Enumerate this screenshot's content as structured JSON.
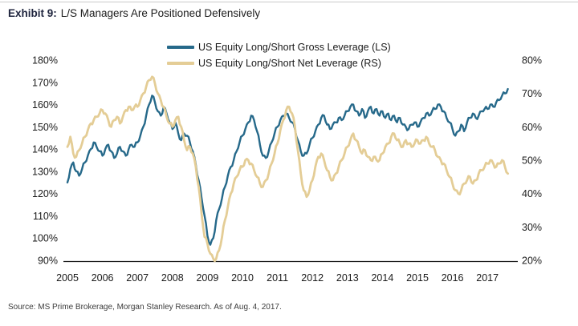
{
  "exhibit": {
    "label": "Exhibit 9:",
    "title": "L/S Managers Are Positioned Defensively"
  },
  "source": "Source: MS Prime Brokerage, Morgan Stanley Research. As of Aug. 4, 2017.",
  "chart_data": {
    "type": "line",
    "title": "Exhibit 9: L/S Managers Are Positioned Defensively",
    "grid": "off",
    "legend_position": "top",
    "x_ticks": [
      "2005",
      "2006",
      "2007",
      "2008",
      "2009",
      "2010",
      "2011",
      "2012",
      "2013",
      "2014",
      "2015",
      "2016",
      "2017"
    ],
    "x_range": [
      2005,
      2017.75
    ],
    "left_axis": {
      "min": 90,
      "max": 180,
      "tick_step": 10,
      "tick_labels": [
        "180%",
        "170%",
        "160%",
        "150%",
        "140%",
        "130%",
        "120%",
        "110%",
        "100%",
        "90%"
      ]
    },
    "right_axis": {
      "min": 20,
      "max": 80,
      "tick_step": 10,
      "tick_labels": [
        "80%",
        "70%",
        "60%",
        "50%",
        "40%",
        "30%",
        "20%"
      ]
    },
    "series": [
      {
        "name": "US Equity Long/Short Gross Leverage (LS)",
        "axis": "left",
        "color": "#26698a",
        "start_year": 2005,
        "interval_months": 1,
        "values": [
          125,
          131,
          134,
          130,
          128,
          131,
          134,
          137,
          140,
          143,
          141,
          139,
          137,
          140,
          142,
          139,
          136,
          138,
          141,
          139,
          137,
          140,
          142,
          141,
          143,
          146,
          150,
          155,
          160,
          164,
          161,
          157,
          155,
          159,
          156,
          152,
          149,
          152,
          147,
          144,
          147,
          146,
          143,
          139,
          133,
          126,
          118,
          110,
          101,
          97,
          100,
          108,
          113,
          118,
          123,
          128,
          132,
          135,
          139,
          143,
          146,
          149,
          152,
          155,
          153,
          148,
          142,
          137,
          136,
          139,
          143,
          147,
          150,
          153,
          155,
          156,
          154,
          152,
          149,
          144,
          139,
          137,
          138,
          142,
          145,
          148,
          151,
          154,
          155,
          151,
          149,
          151,
          152,
          154,
          153,
          155,
          157,
          159,
          160,
          157,
          155,
          158,
          154,
          157,
          159,
          156,
          158,
          155,
          157,
          154,
          156,
          153,
          155,
          152,
          154,
          151,
          150,
          149,
          151,
          152,
          150,
          152,
          154,
          156,
          155,
          157,
          158,
          160,
          159,
          157,
          154,
          152,
          149,
          146,
          148,
          151,
          148,
          152,
          154,
          156,
          154,
          155,
          157,
          158,
          158,
          160,
          159,
          161,
          162,
          164,
          165,
          167
        ]
      },
      {
        "name": "US Equity Long/Short Net Leverage (RS)",
        "axis": "right",
        "color": "#e4cd96",
        "start_year": 2005,
        "interval_months": 1,
        "values": [
          54,
          57,
          52,
          51,
          53,
          55,
          57,
          59,
          61,
          62,
          63,
          64,
          65,
          64,
          62,
          60,
          62,
          63,
          61,
          63,
          65,
          66,
          65,
          66,
          66,
          68,
          70,
          72,
          74,
          75,
          73,
          70,
          68,
          66,
          63,
          61,
          60,
          62,
          63,
          60,
          56,
          53,
          54,
          52,
          48,
          42,
          34,
          27,
          25,
          22,
          20.5,
          20.5,
          23,
          27,
          32,
          36,
          40,
          43,
          45,
          47,
          48,
          50,
          50,
          49,
          47,
          45,
          43,
          42,
          44,
          46,
          49,
          52,
          55,
          59,
          62,
          65,
          66,
          64,
          60,
          53,
          46,
          41,
          39,
          41,
          44,
          48,
          51,
          52,
          50,
          47,
          45,
          44,
          46,
          48,
          50,
          52,
          54,
          56,
          58,
          56,
          54,
          52,
          53,
          51,
          50,
          51,
          50,
          50,
          52,
          54,
          55,
          57,
          58,
          56,
          55,
          54,
          56,
          55,
          54,
          55,
          56,
          55,
          56,
          57,
          55,
          54,
          53,
          51,
          50,
          49,
          47,
          45,
          43,
          41,
          40,
          41,
          43,
          44,
          45,
          43,
          44,
          46,
          47,
          48,
          49,
          50,
          49,
          48,
          49,
          50,
          48,
          46
        ]
      }
    ]
  }
}
